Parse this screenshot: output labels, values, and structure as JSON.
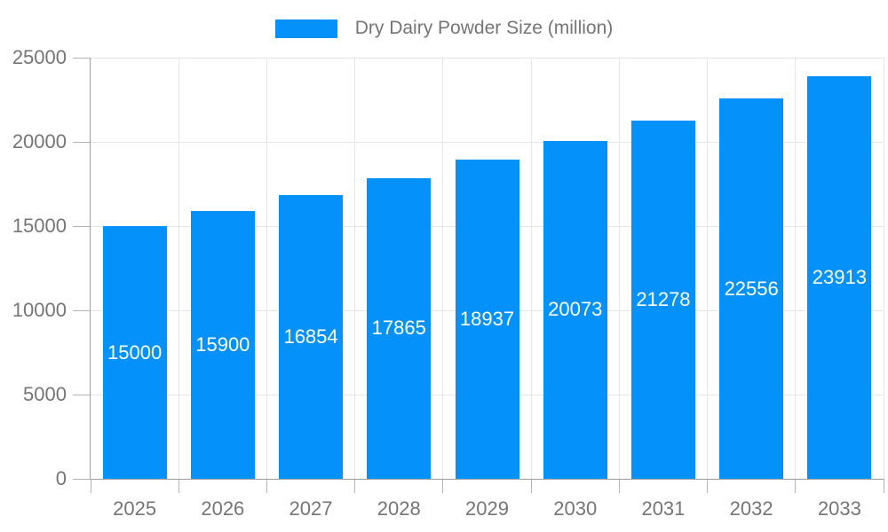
{
  "legend": {
    "label": "Dry Dairy Powder Size (million)"
  },
  "chart_data": {
    "type": "bar",
    "title": "Dry Dairy Powder Size (million)",
    "series_name": "Dry Dairy Powder Size (million)",
    "categories": [
      "2025",
      "2026",
      "2027",
      "2028",
      "2029",
      "2030",
      "2031",
      "2032",
      "2033"
    ],
    "values": [
      15000,
      15900,
      16854,
      17865,
      18937,
      20073,
      21278,
      22556,
      23913
    ],
    "bar_value_labels": [
      "15000",
      "15900",
      "16854",
      "17865",
      "18937",
      "20073",
      "21278",
      "22556",
      "23913"
    ],
    "xlabel": "",
    "ylabel": "",
    "ylim": [
      0,
      25000
    ],
    "yticks": [
      0,
      5000,
      10000,
      15000,
      20000,
      25000
    ],
    "ytick_labels": [
      "0",
      "5000",
      "10000",
      "15000",
      "20000",
      "25000"
    ],
    "grid": true,
    "legend_position": "top",
    "colors": {
      "bar": "#0591FA",
      "bar_value_text": "#ffffff",
      "axis_text": "#757575",
      "legend_text": "#757575",
      "gridline": "#e6e6e6",
      "axis_line": "#9e9e9e",
      "tick": "#b3b3b3",
      "background": "#ffffff"
    }
  }
}
